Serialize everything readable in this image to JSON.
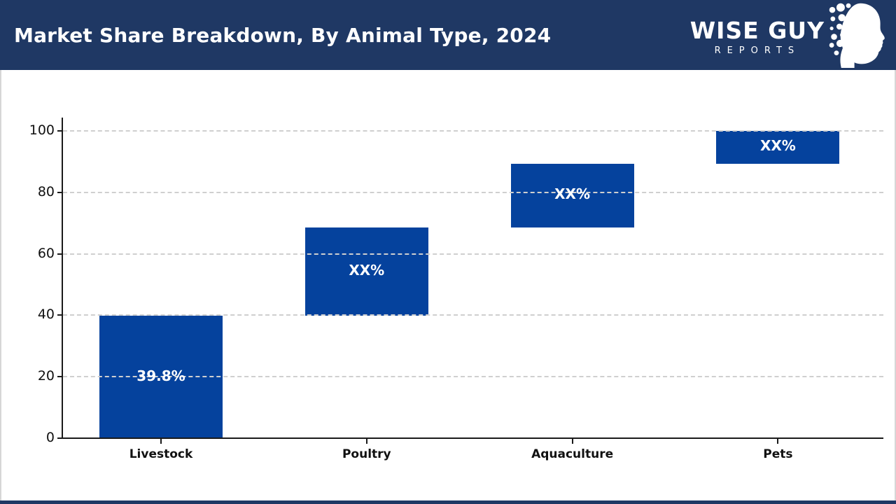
{
  "header": {
    "title": "Market Share Breakdown, By Animal Type, 2024",
    "logo": {
      "name": "WISE GUY",
      "sub": "REPORTS"
    }
  },
  "watermark": {
    "line1": "WISE GUY",
    "line2": "REPORTS"
  },
  "chart_data": {
    "type": "bar",
    "subtype": "waterfall",
    "title": "Market Share Breakdown, By Animal Type, 2024",
    "categories": [
      "Livestock",
      "Poultry",
      "Aquaculture",
      "Pets"
    ],
    "segments": [
      {
        "category": "Livestock",
        "start": 0,
        "end": 39.8,
        "label": "39.8%"
      },
      {
        "category": "Poultry",
        "start": 39.8,
        "end": 68.6,
        "label": "XX%"
      },
      {
        "category": "Aquaculture",
        "start": 68.6,
        "end": 89.4,
        "label": "XX%"
      },
      {
        "category": "Pets",
        "start": 89.4,
        "end": 100,
        "label": "XX%"
      }
    ],
    "ylim": [
      0,
      105
    ],
    "yticks": [
      0,
      20,
      40,
      60,
      80,
      100
    ],
    "grid": "horizontal-dashed",
    "bar_color": "#05429d",
    "value_label_color": "#ffffff",
    "axis_color": "#1a1a1a",
    "gridline_color": "#cfcfcf",
    "header_color": "#1f3864",
    "watermark_color": "#f1f1f2"
  }
}
